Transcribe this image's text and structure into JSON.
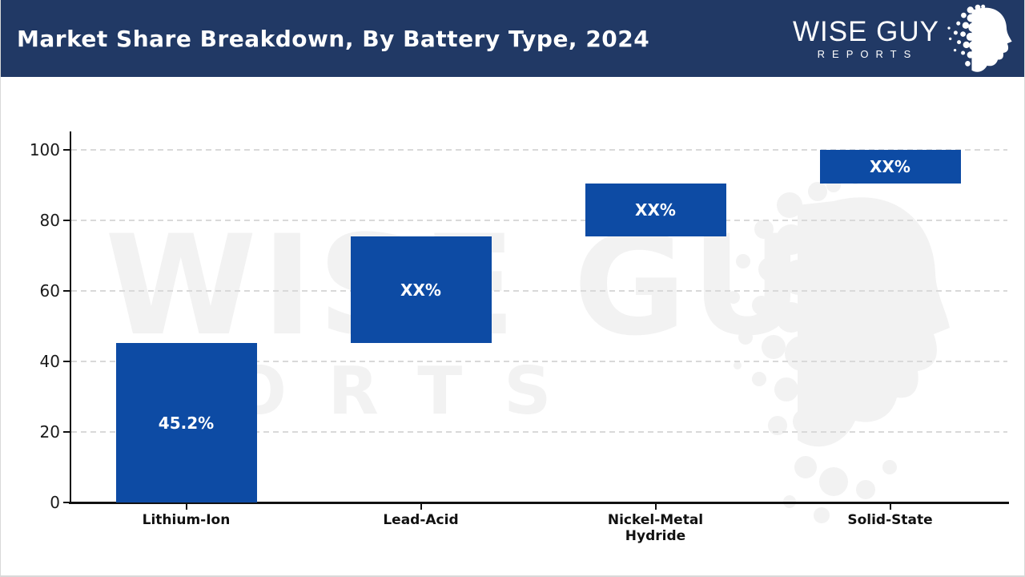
{
  "header": {
    "title": "Market Share Breakdown, By Battery Type, 2024",
    "logo": {
      "line1": "WISE GUY",
      "line2": "REPORTS"
    }
  },
  "watermark": {
    "line1": "WISE GUY",
    "line2": "PORTS"
  },
  "chart_data": {
    "type": "bar",
    "subtype": "waterfall",
    "title": "Market Share Breakdown, By Battery Type, 2024",
    "categories": [
      "Lithium-Ion",
      "Lead-Acid",
      "Nickel-Metal Hydride",
      "Solid-State"
    ],
    "segments": [
      {
        "category": "Lithium-Ion",
        "start": 0,
        "end": 45.2,
        "label": "45.2%"
      },
      {
        "category": "Lead-Acid",
        "start": 45.2,
        "end": 75.4,
        "label": "XX%"
      },
      {
        "category": "Nickel-Metal Hydride",
        "start": 75.4,
        "end": 90.5,
        "label": "XX%"
      },
      {
        "category": "Solid-State",
        "start": 90.5,
        "end": 100,
        "label": "XX%"
      }
    ],
    "xlabel": "",
    "ylabel": "",
    "ylim": [
      0,
      100
    ],
    "yticks": [
      0,
      20,
      40,
      60,
      80,
      100
    ],
    "grid": "horizontal-dashed",
    "legend": "none",
    "colors": {
      "bar": "#0d4ba4",
      "bar_label": "#ffffff",
      "header_bg": "#213965",
      "axis": "#111111",
      "gridline": "#d9d9d9",
      "watermark": "#f2f2f2"
    }
  }
}
